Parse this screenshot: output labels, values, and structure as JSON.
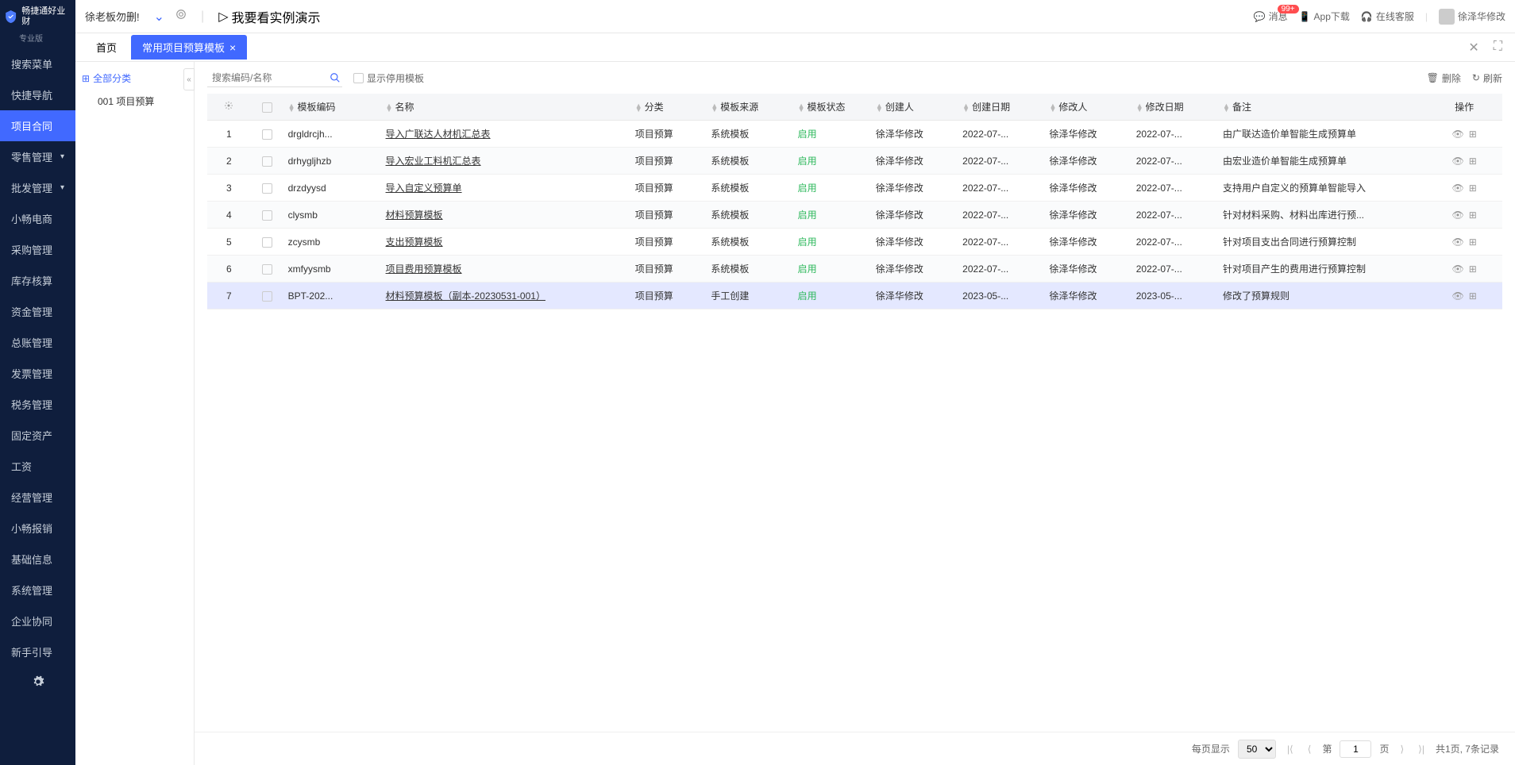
{
  "brand": {
    "name": "畅捷通好业财",
    "edition": "专业版"
  },
  "sidebar": {
    "items": [
      {
        "label": "搜索菜单",
        "expandable": false
      },
      {
        "label": "快捷导航",
        "expandable": false
      },
      {
        "label": "项目合同",
        "expandable": false,
        "active": true
      },
      {
        "label": "零售管理",
        "expandable": true
      },
      {
        "label": "批发管理",
        "expandable": true
      },
      {
        "label": "小畅电商",
        "expandable": false
      },
      {
        "label": "采购管理",
        "expandable": false
      },
      {
        "label": "库存核算",
        "expandable": false
      },
      {
        "label": "资金管理",
        "expandable": false
      },
      {
        "label": "总账管理",
        "expandable": false
      },
      {
        "label": "发票管理",
        "expandable": false
      },
      {
        "label": "税务管理",
        "expandable": false
      },
      {
        "label": "固定资产",
        "expandable": false
      },
      {
        "label": "工资",
        "expandable": false
      },
      {
        "label": "经营管理",
        "expandable": false
      },
      {
        "label": "小畅报销",
        "expandable": false
      },
      {
        "label": "基础信息",
        "expandable": false
      },
      {
        "label": "系统管理",
        "expandable": false
      },
      {
        "label": "企业协同",
        "expandable": false
      },
      {
        "label": "新手引导",
        "expandable": false
      }
    ]
  },
  "topbar": {
    "notice": "徐老板勿删!",
    "demo_link": "我要看实例演示",
    "msg": "消息",
    "msg_badge": "99+",
    "app": "App下载",
    "service": "在线客服",
    "user": "徐泽华修改"
  },
  "tabs": {
    "home": "首页",
    "active": "常用项目预算模板"
  },
  "tree": {
    "root": "全部分类",
    "items": [
      {
        "label": "001 项目预算"
      }
    ]
  },
  "toolbar": {
    "search_placeholder": "搜索编码/名称",
    "show_disabled": "显示停用模板",
    "delete": "删除",
    "refresh": "刷新"
  },
  "columns": {
    "code": "模板编码",
    "name": "名称",
    "category": "分类",
    "source": "模板来源",
    "status": "模板状态",
    "creator": "创建人",
    "create_date": "创建日期",
    "modifier": "修改人",
    "modify_date": "修改日期",
    "note": "备注",
    "op": "操作"
  },
  "rows": [
    {
      "idx": "1",
      "code": "drgldrcjh...",
      "name": "导入广联达人材机汇总表",
      "category": "项目预算",
      "source": "系统模板",
      "status": "启用",
      "creator": "徐泽华修改",
      "cdate": "2022-07-...",
      "modifier": "徐泽华修改",
      "mdate": "2022-07-...",
      "note": "由广联达造价单智能生成预算单"
    },
    {
      "idx": "2",
      "code": "drhygljhzb",
      "name": "导入宏业工料机汇总表",
      "category": "项目预算",
      "source": "系统模板",
      "status": "启用",
      "creator": "徐泽华修改",
      "cdate": "2022-07-...",
      "modifier": "徐泽华修改",
      "mdate": "2022-07-...",
      "note": "由宏业造价单智能生成预算单"
    },
    {
      "idx": "3",
      "code": "drzdyysd",
      "name": "导入自定义预算单",
      "category": "项目预算",
      "source": "系统模板",
      "status": "启用",
      "creator": "徐泽华修改",
      "cdate": "2022-07-...",
      "modifier": "徐泽华修改",
      "mdate": "2022-07-...",
      "note": "支持用户自定义的预算单智能导入"
    },
    {
      "idx": "4",
      "code": "clysmb",
      "name": "材料预算模板",
      "category": "项目预算",
      "source": "系统模板",
      "status": "启用",
      "creator": "徐泽华修改",
      "cdate": "2022-07-...",
      "modifier": "徐泽华修改",
      "mdate": "2022-07-...",
      "note": "针对材料采购、材料出库进行预..."
    },
    {
      "idx": "5",
      "code": "zcysmb",
      "name": "支出预算模板",
      "category": "项目预算",
      "source": "系统模板",
      "status": "启用",
      "creator": "徐泽华修改",
      "cdate": "2022-07-...",
      "modifier": "徐泽华修改",
      "mdate": "2022-07-...",
      "note": "针对项目支出合同进行预算控制"
    },
    {
      "idx": "6",
      "code": "xmfyysmb",
      "name": "项目费用预算模板",
      "category": "项目预算",
      "source": "系统模板",
      "status": "启用",
      "creator": "徐泽华修改",
      "cdate": "2022-07-...",
      "modifier": "徐泽华修改",
      "mdate": "2022-07-...",
      "note": "针对项目产生的费用进行预算控制"
    },
    {
      "idx": "7",
      "code": "BPT-202...",
      "name": "材料预算模板（副本-20230531-001）",
      "category": "项目预算",
      "source": "手工创建",
      "status": "启用",
      "creator": "徐泽华修改",
      "cdate": "2023-05-...",
      "modifier": "徐泽华修改",
      "mdate": "2023-05-...",
      "note": "修改了预算规则",
      "selected": true
    }
  ],
  "pager": {
    "per_page_label": "每页显示",
    "per_page": "50",
    "prefix": "第",
    "page": "1",
    "suffix": "页",
    "total": "共1页, 7条记录"
  },
  "colors": {
    "sidebar_bg": "#0f1e3d",
    "primary": "#4169ff",
    "status_green": "#2eb85c",
    "badge_red": "#ff4d4f"
  }
}
